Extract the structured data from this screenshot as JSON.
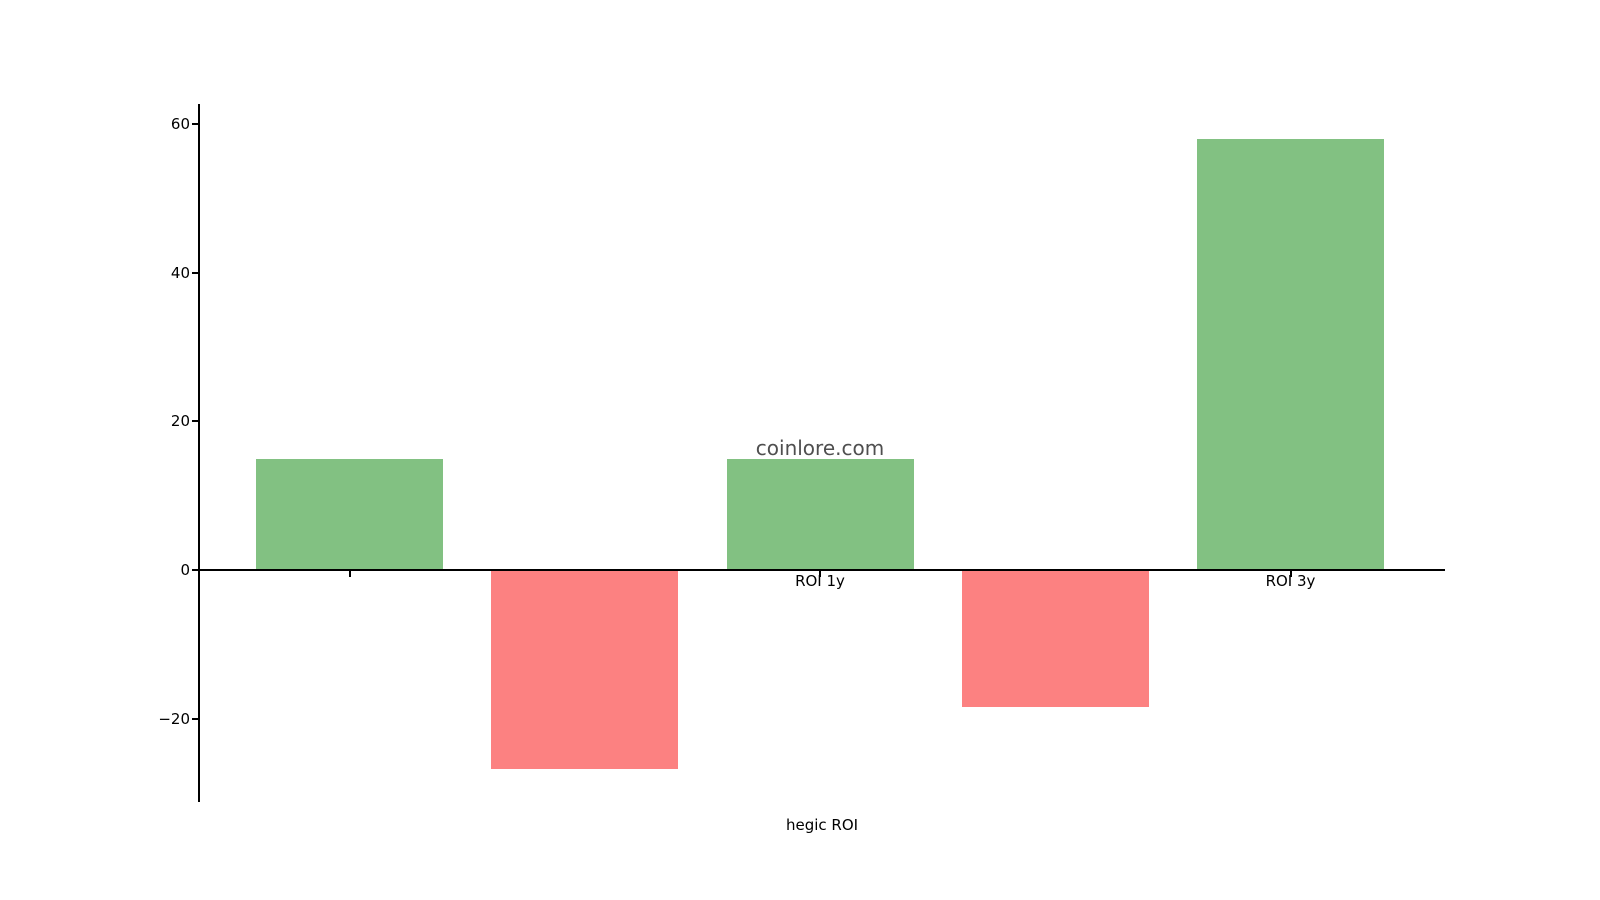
{
  "watermark": "coinlore.com",
  "chart_data": {
    "type": "bar",
    "title": "",
    "xlabel": "hegic ROI",
    "ylabel": "",
    "categories": [
      "",
      "",
      "ROI 1y",
      "",
      "ROI 3y"
    ],
    "values": [
      15,
      -26.8,
      15,
      -18.4,
      58
    ],
    "positive_color": "#82c182",
    "negative_color": "#fc8181",
    "bar_colors": [
      "#82c182",
      "#fc8181",
      "#82c182",
      "#fc8181",
      "#82c182"
    ],
    "y_ticks": [
      {
        "value": 60,
        "label": "60"
      },
      {
        "value": 40,
        "label": "40"
      },
      {
        "value": 20,
        "label": "20"
      },
      {
        "value": 0,
        "label": "0"
      },
      {
        "value": -20,
        "label": "−20"
      }
    ],
    "x_ticks": [
      {
        "index": 0,
        "label": ""
      },
      {
        "index": 2,
        "label": "ROI 1y"
      },
      {
        "index": 4,
        "label": "ROI 3y"
      }
    ],
    "ylim": [
      -31.2,
      62.6
    ],
    "grid": false,
    "legend": null,
    "spine_color": "#000000",
    "text_color": "#000000",
    "watermark_color": "#4f4f4f"
  }
}
